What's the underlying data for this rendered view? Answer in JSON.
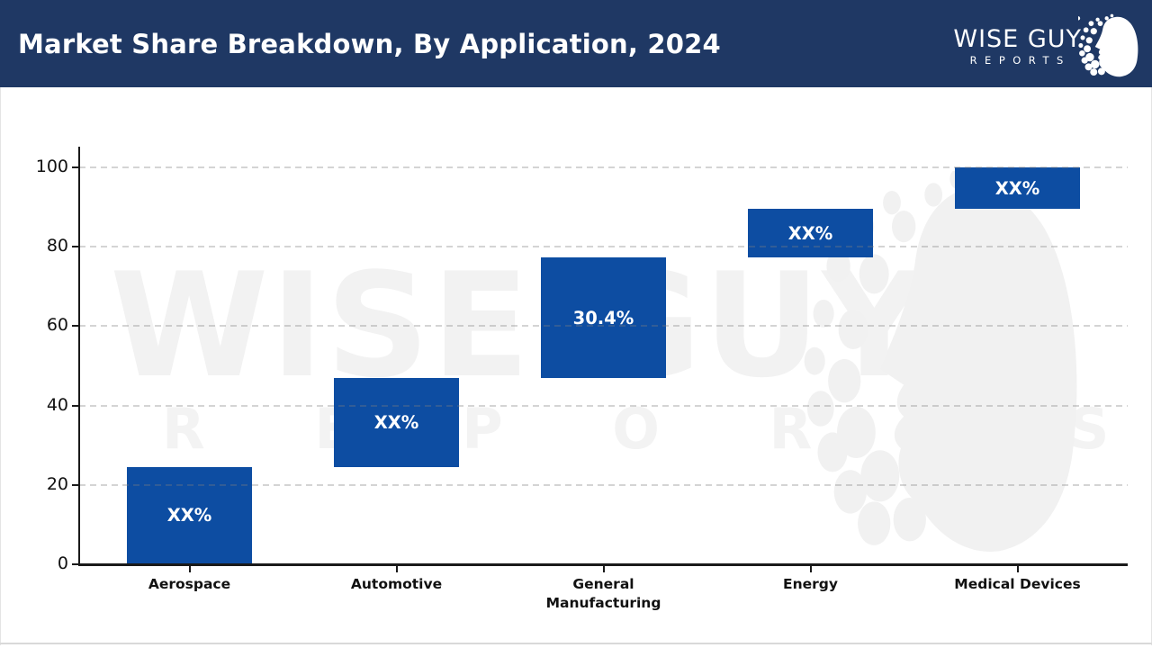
{
  "header": {
    "title": "Market Share Breakdown, By Application, 2024",
    "logo": {
      "line1": "WISE GUY",
      "line2": "REPORTS"
    }
  },
  "watermark": {
    "line1": "WISE GUY",
    "line2": "R E P O R T S"
  },
  "chart_data": {
    "type": "bar",
    "subtype": "waterfall",
    "title": "Market Share Breakdown, By Application, 2024",
    "xlabel": "",
    "ylabel": "",
    "categories": [
      "Aerospace",
      "Automotive",
      "General Manufacturing",
      "Energy",
      "Medical Devices"
    ],
    "category_display": [
      "Aerospace",
      "Automotive",
      "General\nManufacturing",
      "Energy",
      "Medical Devices"
    ],
    "series": [
      {
        "category": "Aerospace",
        "start": 0,
        "end": 24.5,
        "value": 24.5,
        "label": "XX%"
      },
      {
        "category": "Automotive",
        "start": 24.5,
        "end": 46.9,
        "value": 22.4,
        "label": "XX%"
      },
      {
        "category": "General Manufacturing",
        "start": 46.9,
        "end": 77.3,
        "value": 30.4,
        "label": "30.4%"
      },
      {
        "category": "Energy",
        "start": 77.3,
        "end": 89.5,
        "value": 12.2,
        "label": "XX%"
      },
      {
        "category": "Medical Devices",
        "start": 89.5,
        "end": 100,
        "value": 10.5,
        "label": "XX%"
      }
    ],
    "yticks": [
      0,
      20,
      40,
      60,
      80,
      100
    ],
    "ylim": [
      0,
      105
    ],
    "legend": "none",
    "grid": {
      "show": true,
      "style": "dashed",
      "color": "#dcdcdc",
      "above_bars": true
    },
    "colors": {
      "bar": "#0d4da2",
      "bar_label": "#ffffff",
      "header_bg": "#1f3864",
      "header_text": "#ffffff",
      "axis": "#1a1a1a",
      "tick_text": "#111111",
      "watermark": "#f2f2f2"
    }
  }
}
